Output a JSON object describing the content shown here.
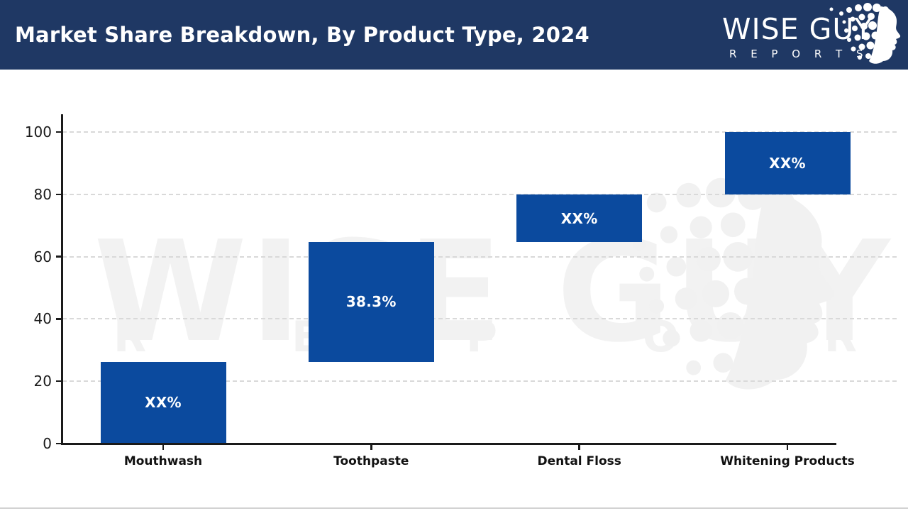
{
  "header": {
    "title": "Market Share Breakdown, By Product Type, 2024"
  },
  "logo": {
    "brand": "WISE GUY",
    "sub": "R E P O R T S"
  },
  "watermark": {
    "brand": "WISE GUY",
    "sub": "REPORTS"
  },
  "colors": {
    "header_bg": "#1f3864",
    "bar": "#0b4a9e",
    "bar_label": "#ffffff",
    "axis": "#1a1a1a",
    "grid": "#d9d9d9",
    "watermark": "#f2f2f2"
  },
  "chart_data": {
    "type": "bar",
    "subtype": "floating-waterfall",
    "title": "Market Share Breakdown, By Product Type, 2024",
    "categories": [
      "Mouthwash",
      "Toothpaste",
      "Dental Floss",
      "Whitening Products"
    ],
    "segments": [
      {
        "category": "Mouthwash",
        "start": 0,
        "end": 26.3,
        "label": "XX%"
      },
      {
        "category": "Toothpaste",
        "start": 26.3,
        "end": 64.6,
        "label": "38.3%"
      },
      {
        "category": "Dental Floss",
        "start": 64.6,
        "end": 80,
        "label": "XX%"
      },
      {
        "category": "Whitening Products",
        "start": 80,
        "end": 100,
        "label": "XX%"
      }
    ],
    "values_shown": [
      "XX%",
      "38.3%",
      "XX%",
      "XX%"
    ],
    "yticks": [
      0,
      20,
      40,
      60,
      80,
      100
    ],
    "ylim": [
      0,
      105.7
    ],
    "xlabel": "",
    "ylabel": "",
    "grid": "horizontal-dashed",
    "legend": "none"
  }
}
